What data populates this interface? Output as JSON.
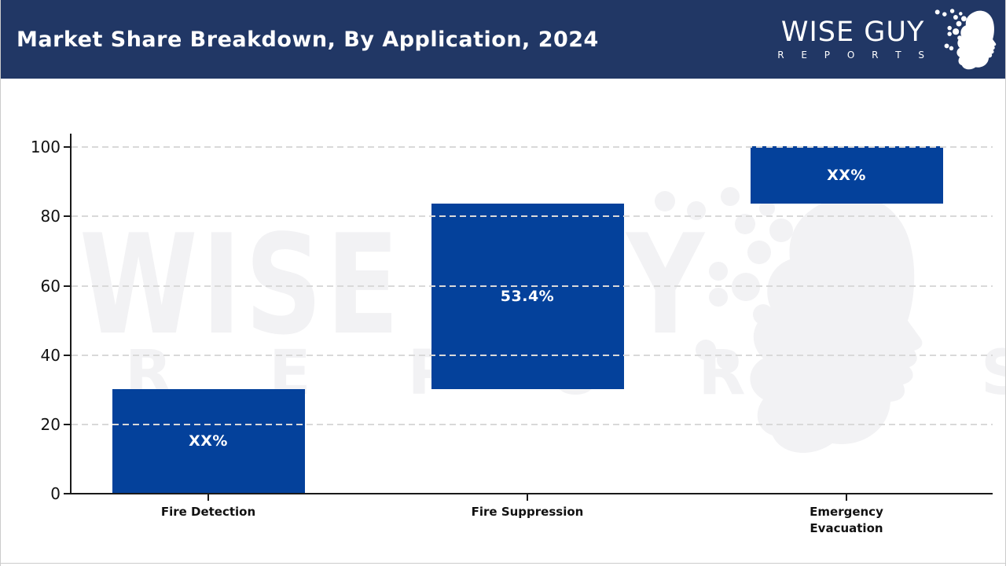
{
  "header": {
    "title": "Market Share Breakdown, By Application, 2024",
    "logo": {
      "name": "WISE GUY",
      "subtitle": "R E P O R T S"
    },
    "bg_color": "#213765"
  },
  "watermark": {
    "wordmark": "WISE GUY",
    "subtext": "R E P O R T S"
  },
  "chart_data": {
    "type": "bar",
    "subtype": "floating-segment (waterfall-style market share)",
    "title": "Market Share Breakdown, By Application, 2024",
    "categories": [
      "Fire Detection",
      "Fire Suppression",
      "Emergency Evacuation"
    ],
    "segments": [
      {
        "category": "Fire Detection",
        "start": 0,
        "end": 30,
        "label": "XX%"
      },
      {
        "category": "Fire Suppression",
        "start": 30,
        "end": 83.4,
        "label": "53.4%"
      },
      {
        "category": "Emergency Evacuation",
        "start": 83.4,
        "end": 100,
        "label": "XX%"
      }
    ],
    "yticks": [
      0,
      20,
      40,
      60,
      80,
      100
    ],
    "ylim": [
      0,
      103.5
    ],
    "xlabel": "",
    "ylabel": "",
    "grid": "dashed horizontal gridlines drawn over bars",
    "legend": "none",
    "bar_color": "#04419B",
    "bar_label_color": "#ffffff",
    "axis_color": "#1a1a1a",
    "gridline_color": "#d9d9d9",
    "background_color": "#ffffff"
  }
}
